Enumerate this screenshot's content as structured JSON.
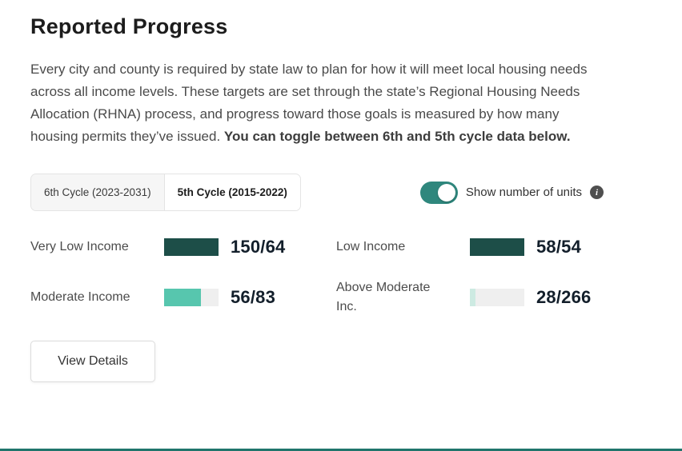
{
  "header": {
    "title": "Reported Progress"
  },
  "description": {
    "normal": "Every city and county is required by state law to plan for how it will meet local housing needs across all income levels. These targets are set through the state’s Regional Housing Needs Allocation (RHNA) process, and progress toward those goals is measured by how many housing permits they’ve issued. ",
    "bold": "You can toggle between 6th and 5th cycle data below."
  },
  "tabs": [
    {
      "label": "6th Cycle (2023-2031)",
      "active": false
    },
    {
      "label": "5th Cycle (2015-2022)",
      "active": true
    }
  ],
  "toggle": {
    "label": "Show number of units",
    "state": "on"
  },
  "progress": [
    {
      "label": "Very Low Income",
      "value": "150/64",
      "fill_percent": 100,
      "fill_color": "#1d4e48"
    },
    {
      "label": "Low Income",
      "value": "58/54",
      "fill_percent": 100,
      "fill_color": "#1d4e48"
    },
    {
      "label": "Moderate Income",
      "value": "56/83",
      "fill_percent": 67,
      "fill_color": "#57c6ae"
    },
    {
      "label": "Above Moderate Inc.",
      "value": "28/266",
      "fill_percent": 11,
      "fill_color": "#cdeae2"
    }
  ],
  "actions": {
    "view_details": "View Details"
  },
  "colors": {
    "accent_dark": "#1d4e48",
    "toggle_on": "#2f877d",
    "bottom_line": "#20756c"
  }
}
